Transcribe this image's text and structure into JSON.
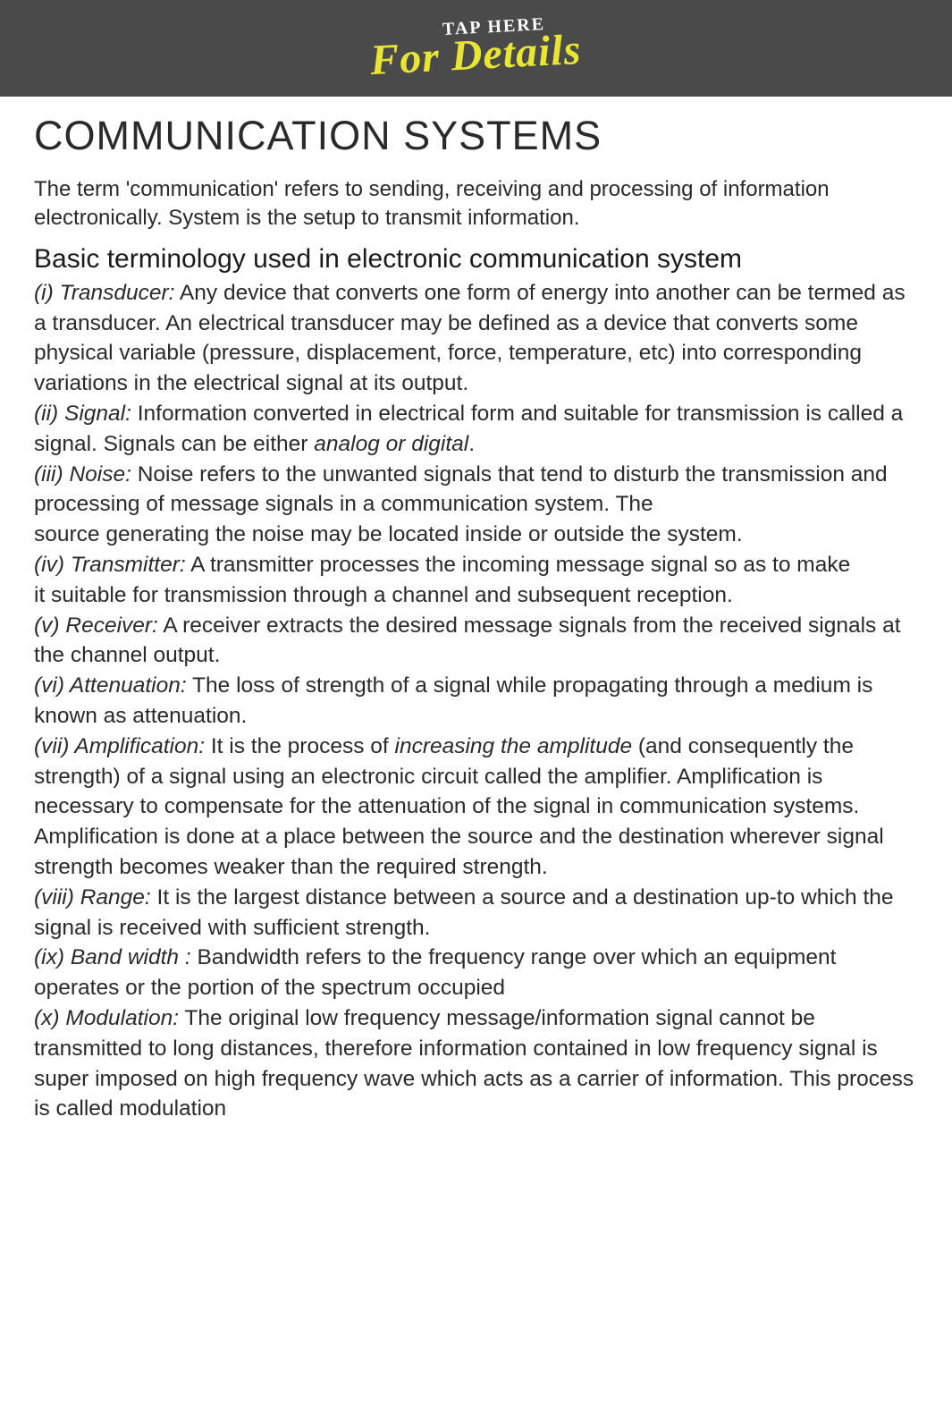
{
  "banner": {
    "tap_text": "TAP HERE",
    "details_text": "For Details",
    "bg_color": "#4a4a4a",
    "tap_color": "#ffffff",
    "details_color": "#e8e535"
  },
  "document": {
    "title": "COMMUNICATION SYSTEMS",
    "intro": "The term 'communication' refers to sending, receiving and processing of information electronically. System is the setup to transmit information.",
    "subtitle": "Basic terminology used in electronic communication system",
    "terms": [
      {
        "label": "(i) Transducer:",
        "text": " Any device that converts one form of energy into another can be termed as a transducer. An electrical transducer may be defined as a device that converts some physical variable (pressure, displacement, force, temperature, etc) into corresponding variations in the electrical signal at its output."
      },
      {
        "label": "(ii) Signal:",
        "text_before": " Information converted in electrical form and suitable for transmission is called a signal. Signals can be either ",
        "italic": "analog or digital",
        "text_after": "."
      },
      {
        "label": "(iii) Noise:",
        "text": " Noise refers to the unwanted signals that tend to disturb the transmission and processing of message signals in a communication system. The\nsource generating the noise may be located inside or outside the system."
      },
      {
        "label": "(iv) Transmitter:",
        "text": " A transmitter processes the incoming message signal so as to make\nit suitable for transmission through a channel and subsequent reception."
      },
      {
        "label": "(v) Receiver:",
        "text": " A receiver extracts the desired message signals from the received signals at the channel output."
      },
      {
        "label": "(vi) Attenuation:",
        "text": " The loss of strength of a signal while propagating through a medium is known as attenuation."
      },
      {
        "label": "(vii) Amplification:",
        "text_before": " It is the process of ",
        "italic": "increasing the amplitude",
        "text_after": " (and consequently the strength) of a signal using an electronic circuit called the amplifier. Amplification is necessary to compensate for the attenuation of the signal in communication systems. Amplification is done at a place between the source and the destination wherever signal strength becomes weaker than the required strength."
      },
      {
        "label": "(viii) Range:",
        "text": " It is the largest distance between a source and a destination up-to which the signal is received with sufficient strength."
      },
      {
        "label": "(ix) Band width :",
        "text": " Bandwidth refers to the frequency range over which an equipment\noperates or the portion of the spectrum occupied"
      },
      {
        "label": "(x) Modulation:",
        "text": " The original low frequency message/information signal cannot be transmitted to long distances, therefore information contained in low frequency signal is super imposed on high frequency wave which acts as a carrier of information. This process is called modulation"
      }
    ]
  }
}
